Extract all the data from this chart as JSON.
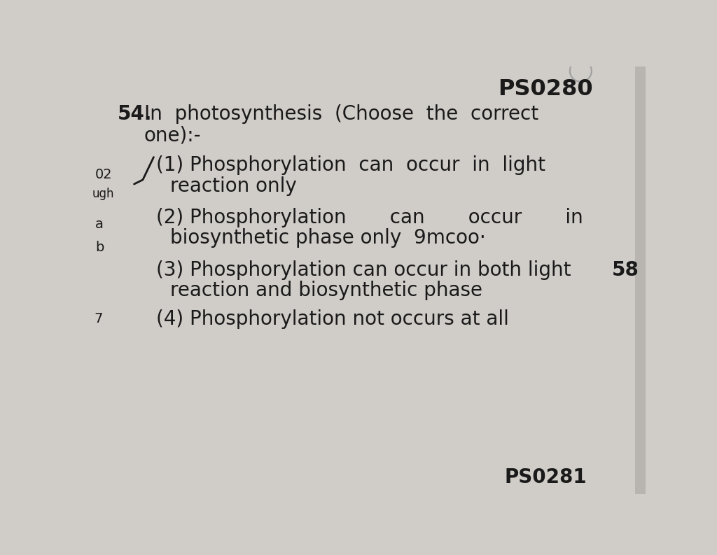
{
  "bg_color": "#d0ccc8",
  "text_color": "#1a1a1a",
  "header": "PS0280",
  "question_number": "54.",
  "side_number": "58",
  "footer": "PS0281",
  "option2_handwriting": "9mcoo."
}
